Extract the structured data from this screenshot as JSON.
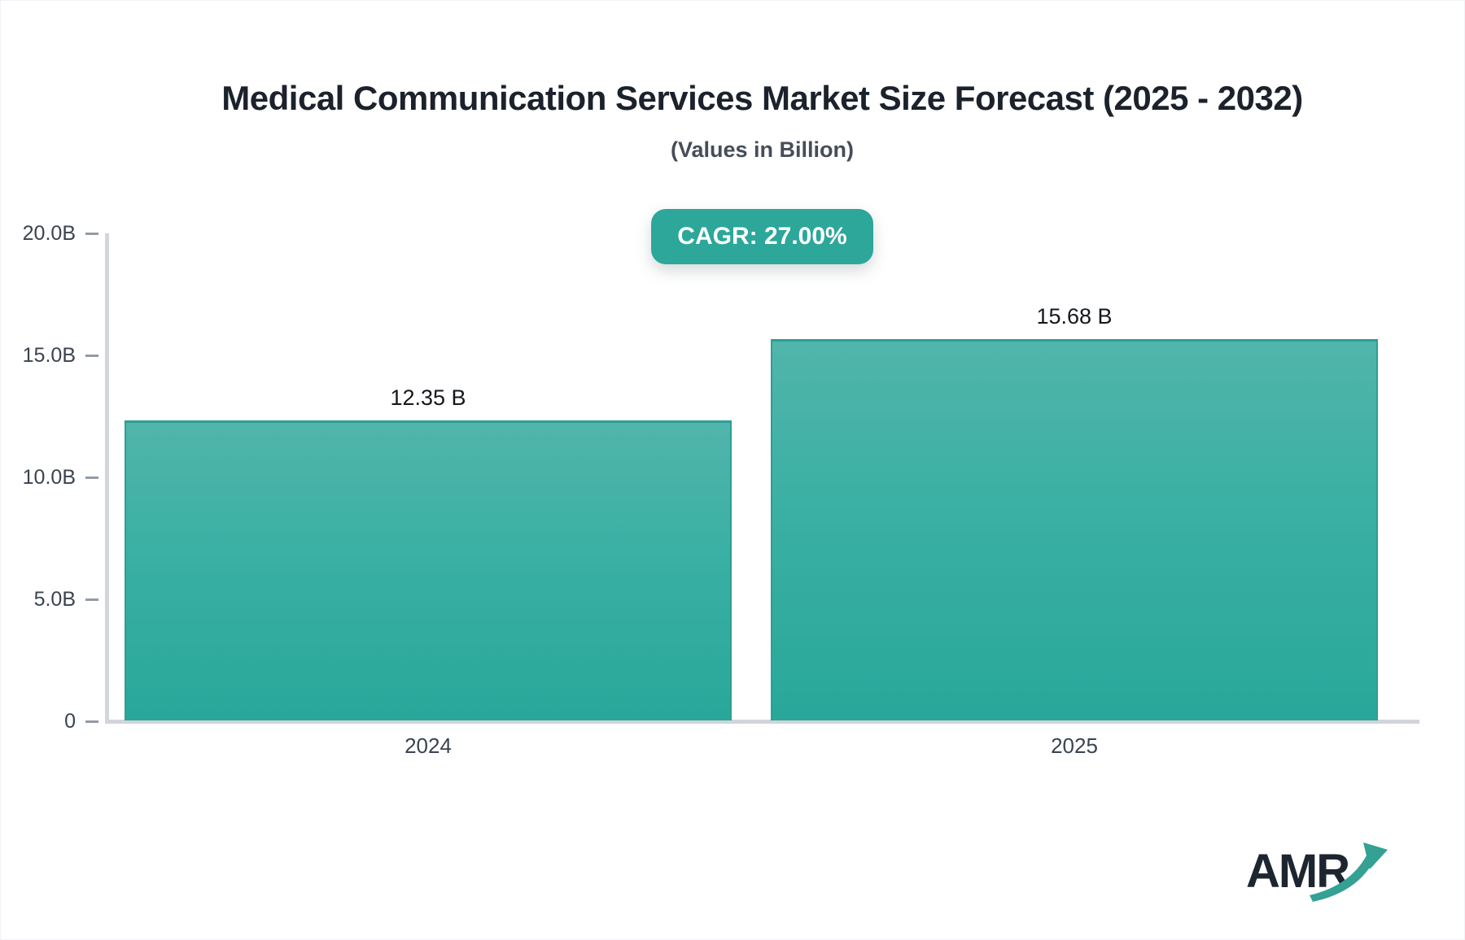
{
  "header": {
    "title": "Medical Communication Services Market Size Forecast (2025 - 2032)",
    "subtitle": "(Values in Billion)",
    "cagr_badge": "CAGR: 27.00%"
  },
  "chart_data": {
    "type": "bar",
    "title": "Medical Communication Services Market Size Forecast (2025 - 2032)",
    "subtitle": "(Values in Billion)",
    "annotation": "CAGR: 27.00%",
    "categories": [
      "2024",
      "2025"
    ],
    "values": [
      12.35,
      15.68
    ],
    "value_labels": [
      "12.35 B",
      "15.68 B"
    ],
    "ylim": [
      0,
      20
    ],
    "yticks": [
      {
        "value": 0,
        "label": "0"
      },
      {
        "value": 5,
        "label": "5.0B"
      },
      {
        "value": 10,
        "label": "10.0B"
      },
      {
        "value": 15,
        "label": "15.0B"
      },
      {
        "value": 20,
        "label": "20.0B"
      }
    ],
    "grid": false,
    "legend": false
  },
  "colors": {
    "bar_gradient_top": "#51b5ab",
    "bar_gradient_bottom": "#28a89a",
    "bar_border": "#2d9e93",
    "badge_background": "#2ca79a",
    "badge_text": "#ffffff",
    "axis_line": "#d3d6db",
    "tick_dash": "#939aa3",
    "axis_label_text": "#3b434f",
    "title_text": "#1c222b",
    "logo_text": "#1d2630",
    "logo_arrow": "#35a094"
  },
  "logo": {
    "text": "AMR"
  }
}
